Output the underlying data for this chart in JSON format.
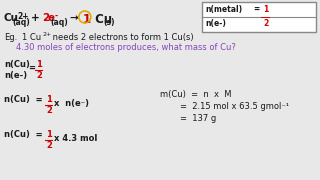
{
  "bg_color": "#e8e8e8",
  "black": "#1a1a1a",
  "red": "#cc0000",
  "purple": "#8844bb",
  "purple_line": "4.30 moles of electrons produces, what mass of Cu?",
  "mcu_line1": "m(Cu)  =  n  x  M",
  "mcu_line2": "=  2.15 mol x 63.5 gmol⁻¹",
  "mcu_line3": "=  137 g"
}
